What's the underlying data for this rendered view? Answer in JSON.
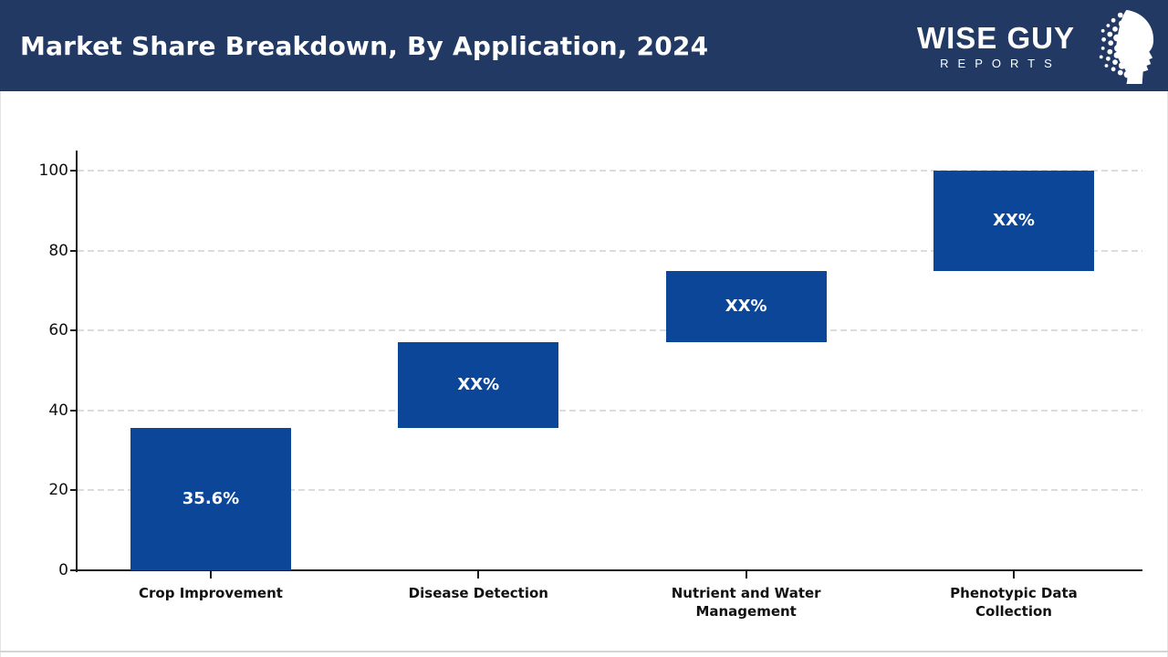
{
  "header": {
    "title": "Market Share Breakdown, By Application, 2024",
    "bg_color": "#223A63",
    "logo": {
      "line1": "WISE GUY",
      "line2": "REPORTS",
      "icon": "dotted-head-profile-icon",
      "color": "#ffffff"
    }
  },
  "watermark": {
    "line1": "WISE GUY",
    "line2": "REPORTS",
    "color": "#f2f2f2"
  },
  "chart_data": {
    "type": "bar",
    "subtype": "floating-waterfall",
    "title": "Market Share Breakdown, By Application, 2024",
    "categories": [
      "Crop Improvement",
      "Disease Detection",
      "Nutrient and Water Management",
      "Phenotypic Data Collection"
    ],
    "segments": [
      {
        "category": "Crop Improvement",
        "start": 0,
        "end": 35.6,
        "label": "35.6%"
      },
      {
        "category": "Disease Detection",
        "start": 35.6,
        "end": 57,
        "label": "XX%"
      },
      {
        "category": "Nutrient and Water Management",
        "start": 57,
        "end": 75,
        "label": "XX%"
      },
      {
        "category": "Phenotypic Data Collection",
        "start": 75,
        "end": 100,
        "label": "XX%"
      }
    ],
    "xlabel": "",
    "ylabel": "",
    "yticks": [
      0,
      20,
      40,
      60,
      80,
      100
    ],
    "ylim": [
      0,
      105
    ],
    "bar_color": "#0B4699",
    "value_label_color": "#ffffff",
    "grid": "horizontal-dashed",
    "grid_color": "#dcdcdc",
    "axis_color": "#1a1a1a",
    "legend": false
  }
}
